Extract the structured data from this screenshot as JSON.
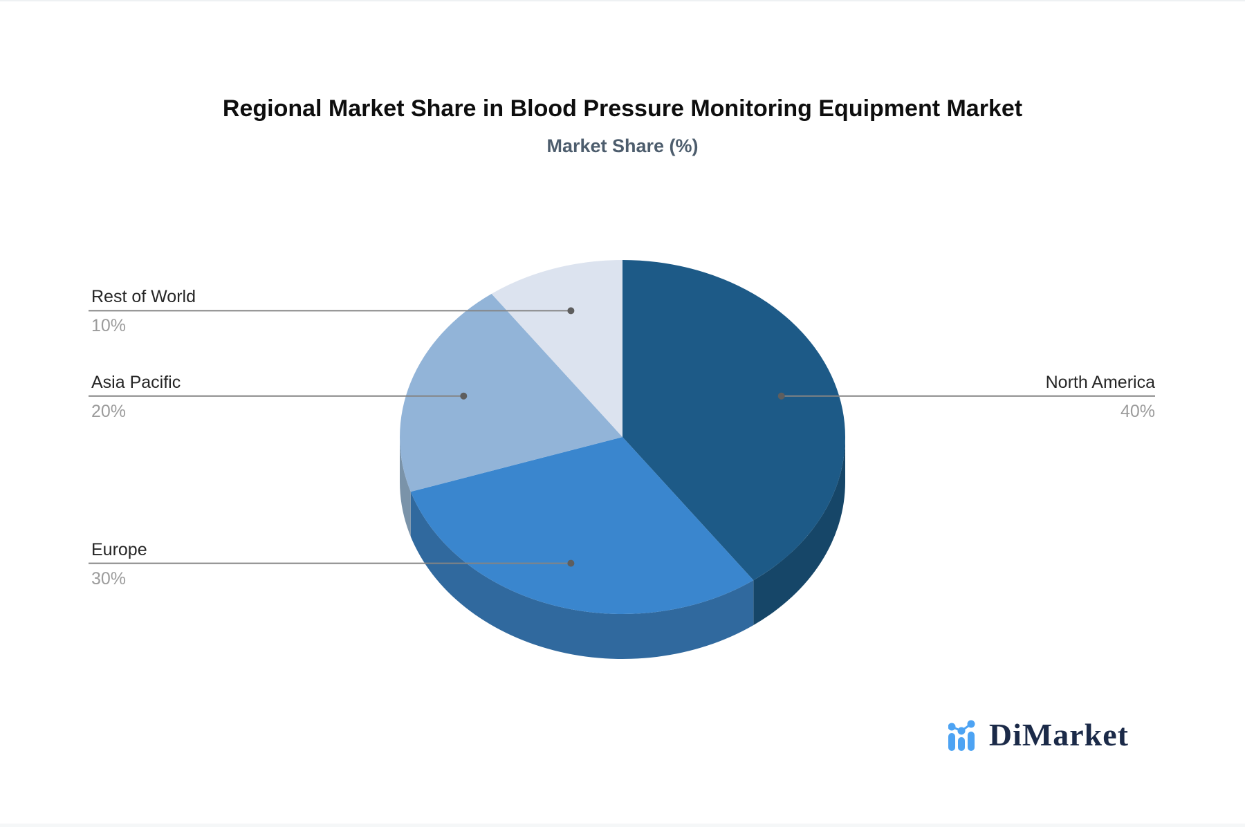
{
  "title": "Regional Market Share in Blood Pressure Monitoring Equipment Market",
  "subtitle": "Market Share (%)",
  "chart_data": {
    "type": "pie",
    "style": "3d",
    "title": "Regional Market Share in Blood Pressure Monitoring Equipment Market",
    "subtitle": "Market Share (%)",
    "unit": "%",
    "start_angle_deg": 0,
    "direction": "clockwise",
    "legend_position": "connector-labels",
    "slices": [
      {
        "label": "North America",
        "value": 40,
        "pct_label": "40%",
        "color": "#1d5a87",
        "side_color": "#164668"
      },
      {
        "label": "Europe",
        "value": 30,
        "pct_label": "30%",
        "color": "#3a86ce",
        "side_color": "#30699e"
      },
      {
        "label": "Asia Pacific",
        "value": 20,
        "pct_label": "20%",
        "color": "#92b4d8",
        "side_color": "#7a93a9"
      },
      {
        "label": "Rest of World",
        "value": 10,
        "pct_label": "10%",
        "color": "#dce3ef",
        "side_color": "#c3cdda"
      }
    ]
  },
  "colors": {
    "background": "#ffffff",
    "title_text": "#0e0e0e",
    "subtitle_text": "#4d5d6d",
    "label_text": "#262626",
    "percent_text": "#9b9b9b",
    "connector_line": "#848484",
    "connector_dot": "#5e5e5e",
    "brand_navy": "#1b2a48",
    "brand_blue": "#4da3f3"
  },
  "brand": {
    "name": "DiMarket",
    "icon": "bar-chart-logo-icon"
  }
}
